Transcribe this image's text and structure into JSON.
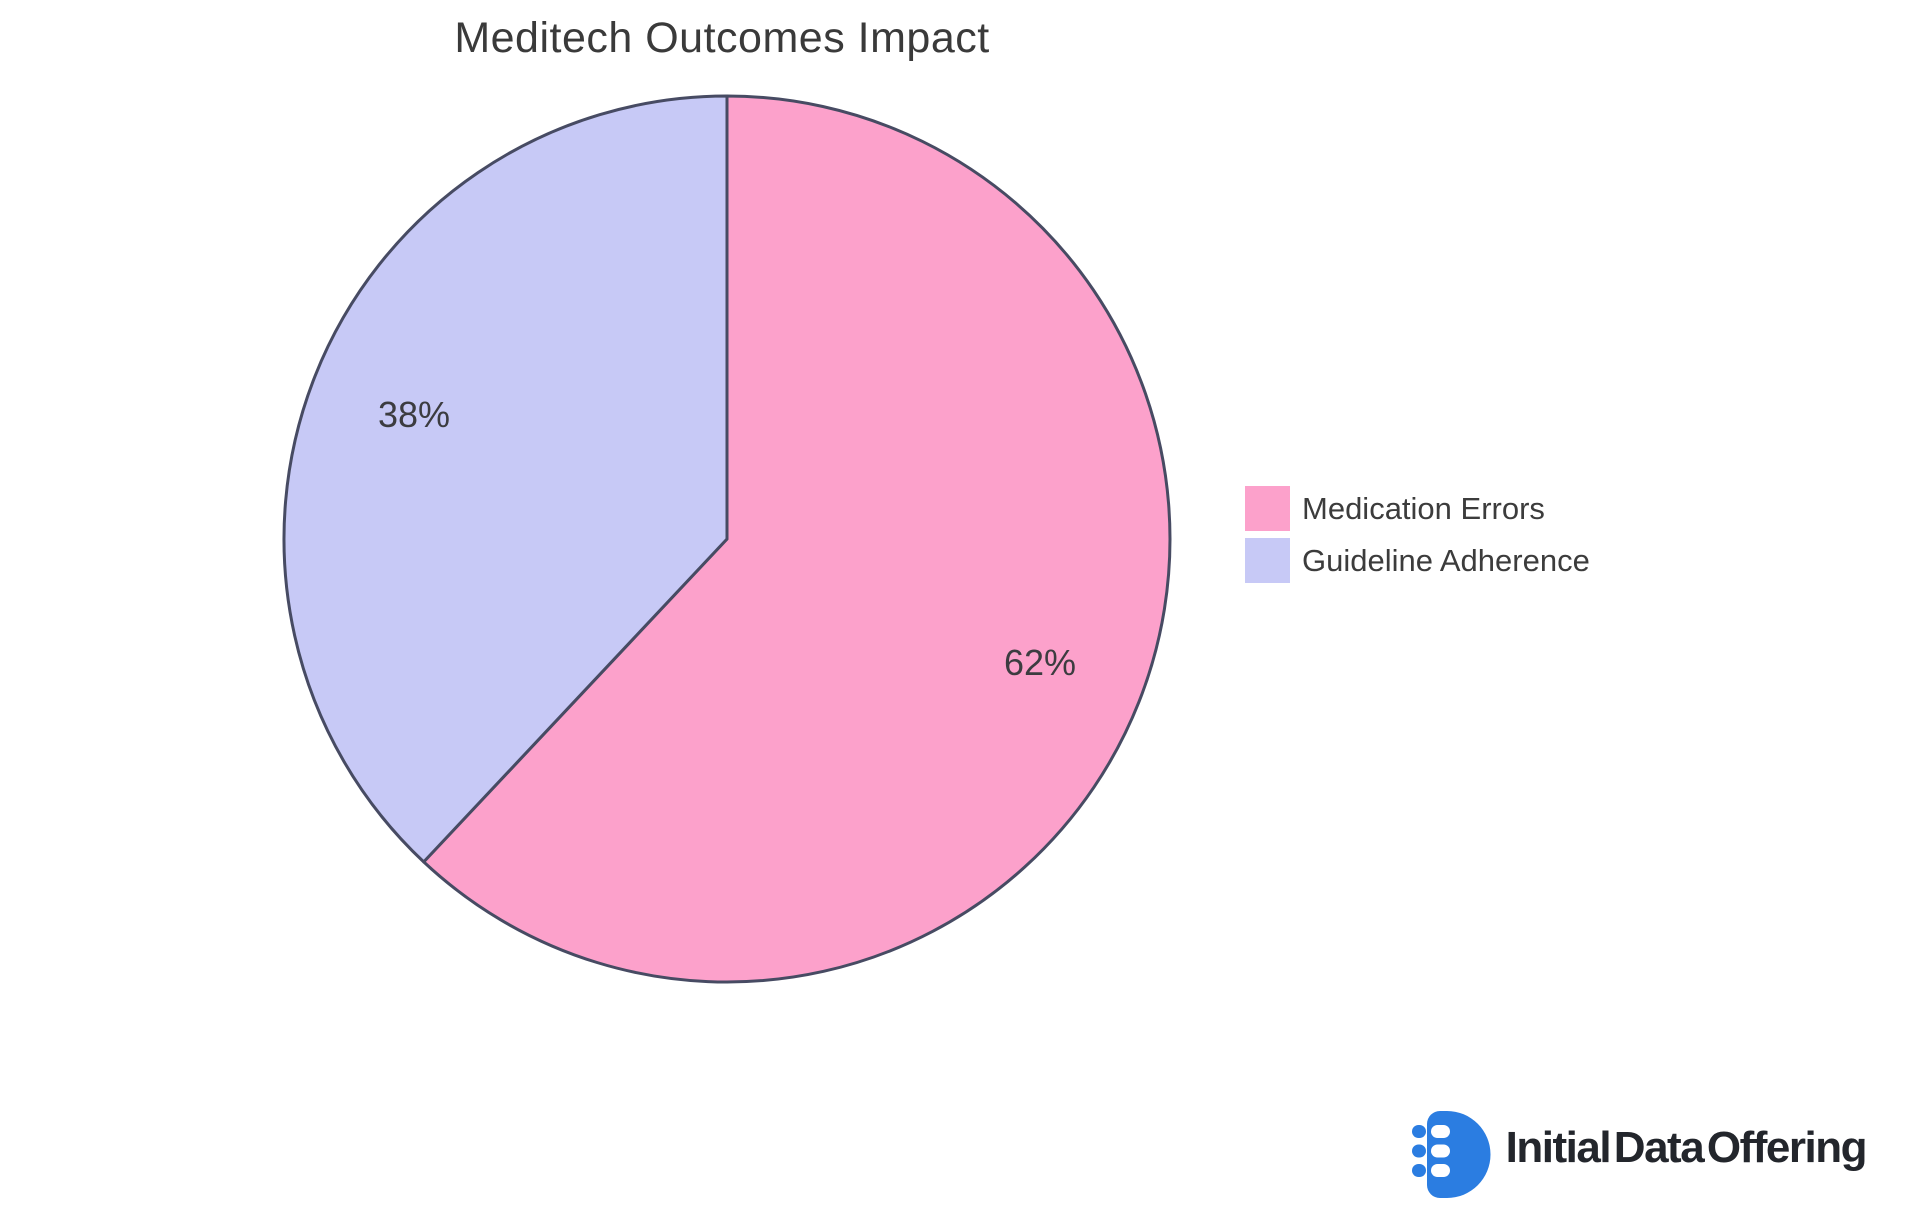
{
  "chart_data": {
    "type": "pie",
    "title": "Meditech Outcomes Impact",
    "title_color": "#3A3A3A",
    "slices": [
      {
        "label": "Medication Errors",
        "value": 62,
        "percent_label": "62%",
        "color": "#FCA1CB"
      },
      {
        "label": "Guideline Adherence",
        "value": 38,
        "percent_label": "38%",
        "color": "#C7C9F6"
      }
    ],
    "start_angle": "top",
    "direction": "clockwise",
    "slice_border_color": "#474B63",
    "percent_label_color": "#3C3C40",
    "legend_position": "right",
    "legend_text_color": "#3C3C3C"
  },
  "branding": {
    "logo_text": "Initial Data Offering",
    "logo_icon": "ido-notebook-d-icon",
    "logo_icon_color": "#2B7DE1",
    "logo_text_color": "#23262C"
  }
}
